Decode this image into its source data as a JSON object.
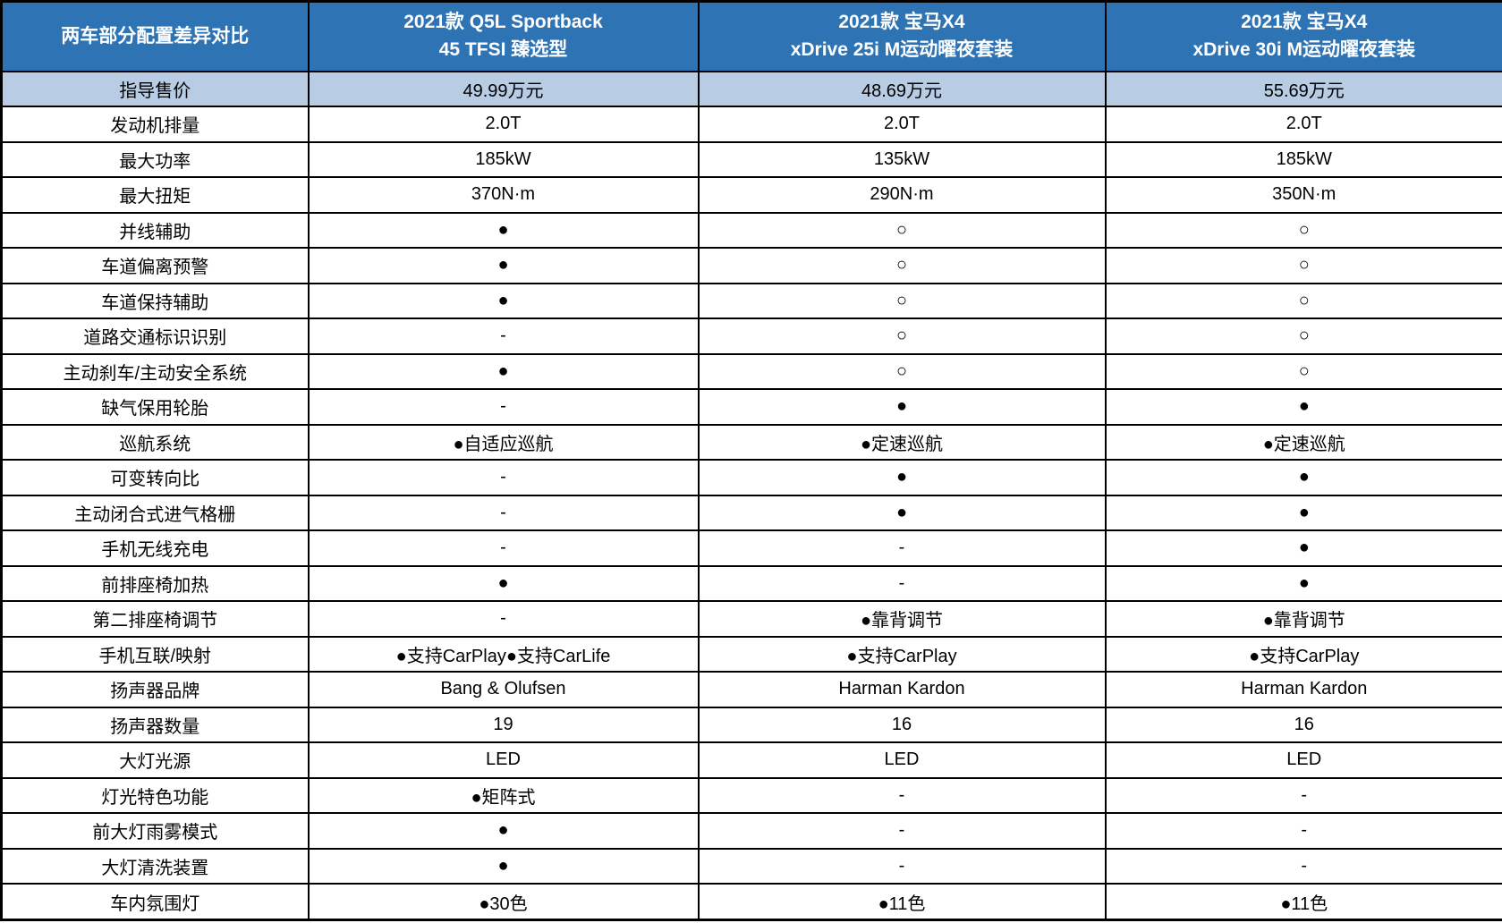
{
  "title": "两车部分配置差异对比",
  "colors": {
    "header_bg": "#2E74B5",
    "header_text": "#FFFFFF",
    "highlight_row_bg": "#B8CCE4",
    "grid_border": "#000000"
  },
  "symbols": {
    "equipped": "●",
    "not_equipped": "○",
    "not_available": "-"
  },
  "table": {
    "columns": [
      {
        "id": "feature",
        "lines": [
          "两车部分配置差异对比"
        ]
      },
      {
        "id": "q5l",
        "lines": [
          "2021款 Q5L Sportback",
          "45 TFSI 臻选型"
        ]
      },
      {
        "id": "x4-25i",
        "lines": [
          "2021款 宝马X4",
          "xDrive 25i M运动曜夜套装"
        ]
      },
      {
        "id": "x4-30i",
        "lines": [
          "2021款 宝马X4",
          "xDrive 30i M运动曜夜套装"
        ]
      }
    ],
    "rows": [
      {
        "highlight": true,
        "cells": [
          "指导售价",
          "49.99万元",
          "48.69万元",
          "55.69万元"
        ]
      },
      {
        "highlight": false,
        "cells": [
          "发动机排量",
          "2.0T",
          "2.0T",
          "2.0T"
        ]
      },
      {
        "highlight": false,
        "cells": [
          "最大功率",
          "185kW",
          "135kW",
          "185kW"
        ]
      },
      {
        "highlight": false,
        "cells": [
          "最大扭矩",
          "370N·m",
          "290N·m",
          "350N·m"
        ]
      },
      {
        "highlight": false,
        "cells": [
          "并线辅助",
          "●",
          "○",
          "○"
        ]
      },
      {
        "highlight": false,
        "cells": [
          "车道偏离预警",
          "●",
          "○",
          "○"
        ]
      },
      {
        "highlight": false,
        "cells": [
          "车道保持辅助",
          "●",
          "○",
          "○"
        ]
      },
      {
        "highlight": false,
        "cells": [
          "道路交通标识识别",
          "-",
          "○",
          "○"
        ]
      },
      {
        "highlight": false,
        "cells": [
          "主动刹车/主动安全系统",
          "●",
          "○",
          "○"
        ]
      },
      {
        "highlight": false,
        "cells": [
          "缺气保用轮胎",
          "-",
          "●",
          "●"
        ]
      },
      {
        "highlight": false,
        "cells": [
          "巡航系统",
          "●自适应巡航",
          "●定速巡航",
          "●定速巡航"
        ]
      },
      {
        "highlight": false,
        "cells": [
          "可变转向比",
          "-",
          "●",
          "●"
        ]
      },
      {
        "highlight": false,
        "cells": [
          "主动闭合式进气格栅",
          "-",
          "●",
          "●"
        ]
      },
      {
        "highlight": false,
        "cells": [
          "手机无线充电",
          "-",
          "-",
          "●"
        ]
      },
      {
        "highlight": false,
        "cells": [
          "前排座椅加热",
          "●",
          "-",
          "●"
        ]
      },
      {
        "highlight": false,
        "cells": [
          "第二排座椅调节",
          "-",
          "●靠背调节",
          "●靠背调节"
        ]
      },
      {
        "highlight": false,
        "cells": [
          "手机互联/映射",
          "●支持CarPlay●支持CarLife",
          "●支持CarPlay",
          "●支持CarPlay"
        ]
      },
      {
        "highlight": false,
        "cells": [
          "扬声器品牌",
          "Bang & Olufsen",
          "Harman Kardon",
          "Harman Kardon"
        ]
      },
      {
        "highlight": false,
        "cells": [
          "扬声器数量",
          "19",
          "16",
          "16"
        ]
      },
      {
        "highlight": false,
        "cells": [
          "大灯光源",
          "LED",
          "LED",
          "LED"
        ]
      },
      {
        "highlight": false,
        "cells": [
          "灯光特色功能",
          "●矩阵式",
          "-",
          "-"
        ]
      },
      {
        "highlight": false,
        "cells": [
          "前大灯雨雾模式",
          "●",
          "-",
          "-"
        ]
      },
      {
        "highlight": false,
        "cells": [
          "大灯清洗装置",
          "●",
          "-",
          "-"
        ]
      },
      {
        "highlight": false,
        "cells": [
          "车内氛围灯",
          "●30色",
          "●11色",
          "●11色"
        ]
      }
    ]
  }
}
